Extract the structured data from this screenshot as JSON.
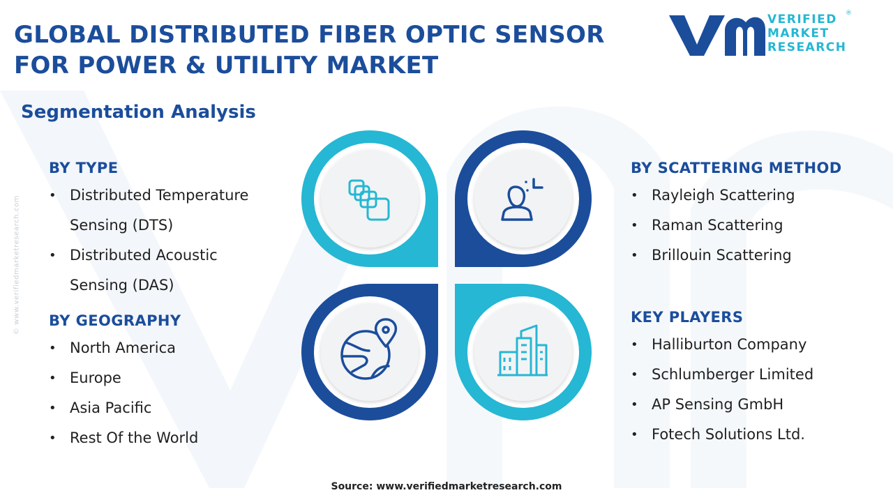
{
  "header": {
    "title_line1": "GLOBAL DISTRIBUTED FIBER OPTIC SENSOR",
    "title_line2": "FOR POWER & UTILITY MARKET",
    "subtitle": "Segmentation Analysis"
  },
  "logo": {
    "line1": "VERIFIED",
    "line2": "MARKET",
    "line3": "RESEARCH",
    "registered": "®"
  },
  "side_watermark": "© www.verifiedmarketresearch.com",
  "sections": {
    "by_type": {
      "heading": "BY TYPE",
      "items": [
        {
          "line1": "Distributed Temperature",
          "line2": "Sensing (DTS)"
        },
        {
          "line1": "Distributed Acoustic",
          "line2": "Sensing (DAS)"
        }
      ]
    },
    "by_geography": {
      "heading": "BY GEOGRAPHY",
      "items": [
        "North America",
        "Europe",
        "Asia Pacific",
        "Rest Of the World"
      ]
    },
    "by_scattering_method": {
      "heading": "BY SCATTERING METHOD",
      "items": [
        "Rayleigh Scattering",
        "Raman Scattering",
        "Brillouin Scattering"
      ]
    },
    "key_players": {
      "heading": "KEY PLAYERS",
      "items": [
        "Halliburton Company",
        "Schlumberger Limited",
        "AP Sensing GmbH",
        "Fotech Solutions Ltd."
      ]
    }
  },
  "graphic": {
    "icons": [
      "blocks-icon",
      "person-focus-icon",
      "globe-pin-icon",
      "buildings-icon"
    ]
  },
  "colors": {
    "navy": "#1b4d9b",
    "cyan": "#25b7d3",
    "circle_fill": "#f2f3f5"
  },
  "footer": {
    "source": "Source: www.verifiedmarketresearch.com"
  }
}
